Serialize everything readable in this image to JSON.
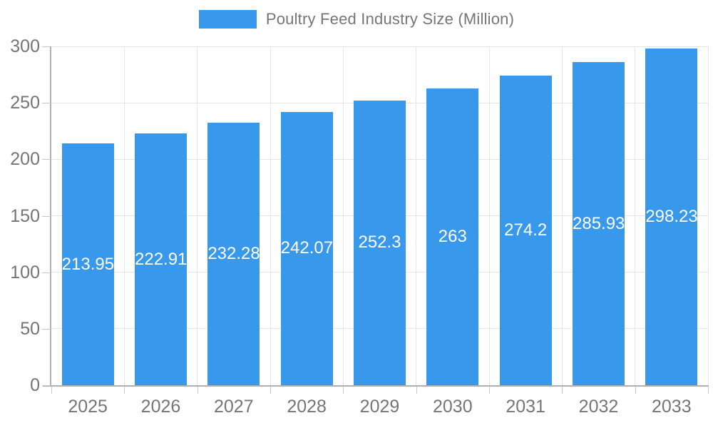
{
  "chart_data": {
    "type": "bar",
    "title": "Poultry Feed Industry Size (Million)",
    "legend": {
      "label": "Poultry Feed Industry Size (Million)",
      "position": "top-center"
    },
    "categories": [
      "2025",
      "2026",
      "2027",
      "2028",
      "2029",
      "2030",
      "2031",
      "2032",
      "2033"
    ],
    "series": [
      {
        "name": "Poultry Feed Industry Size (Million)",
        "values": [
          213.95,
          222.91,
          232.28,
          242.07,
          252.3,
          263,
          274.2,
          285.93,
          298.23
        ],
        "value_labels": [
          "213.95",
          "222.91",
          "232.28",
          "242.07",
          "252.3",
          "263",
          "274.2",
          "285.93",
          "298.23"
        ]
      }
    ],
    "xlabel": "",
    "ylabel": "",
    "ylim": [
      0,
      300
    ],
    "yticks": [
      0,
      50,
      100,
      150,
      200,
      250,
      300
    ],
    "ytick_labels": [
      "0",
      "50",
      "100",
      "150",
      "200",
      "250",
      "300"
    ],
    "grid": true,
    "colors": {
      "bar": "#3898ec",
      "bar_label": "#ffffff",
      "axis_line": "#b0b0b0",
      "gridline": "#e6e6e6",
      "tick": "#c9c9c9",
      "axis_text": "#757575",
      "background": "#ffffff"
    }
  }
}
